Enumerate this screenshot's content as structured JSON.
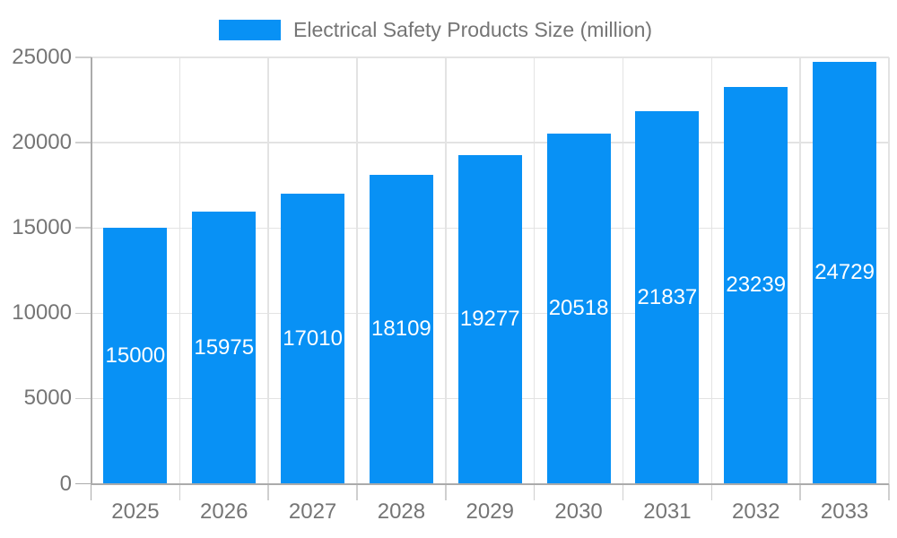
{
  "chart_data": {
    "type": "bar",
    "title": "",
    "legend": {
      "label": "Electrical Safety Products Size (million)",
      "position": "top-center"
    },
    "categories": [
      "2025",
      "2026",
      "2027",
      "2028",
      "2029",
      "2030",
      "2031",
      "2032",
      "2033"
    ],
    "series": [
      {
        "name": "Electrical Safety Products Size (million)",
        "values": [
          15000,
          15975,
          17010,
          18109,
          19277,
          20518,
          21837,
          23239,
          24729
        ]
      }
    ],
    "value_labels_shown": true,
    "xlabel": "",
    "ylabel": "",
    "ylim": [
      0,
      25000
    ],
    "yticks": [
      0,
      5000,
      10000,
      15000,
      20000,
      25000
    ],
    "grid": "horizontal-and-vertical",
    "colors": {
      "bar": "#0891f5",
      "value_label": "#ffffff",
      "tick_label": "#757575",
      "legend_text": "#757575",
      "gridline": "#e3e3e3",
      "tick_mark": "#cfcfcf",
      "axis_line": "#ababab",
      "background": "#ffffff"
    }
  }
}
